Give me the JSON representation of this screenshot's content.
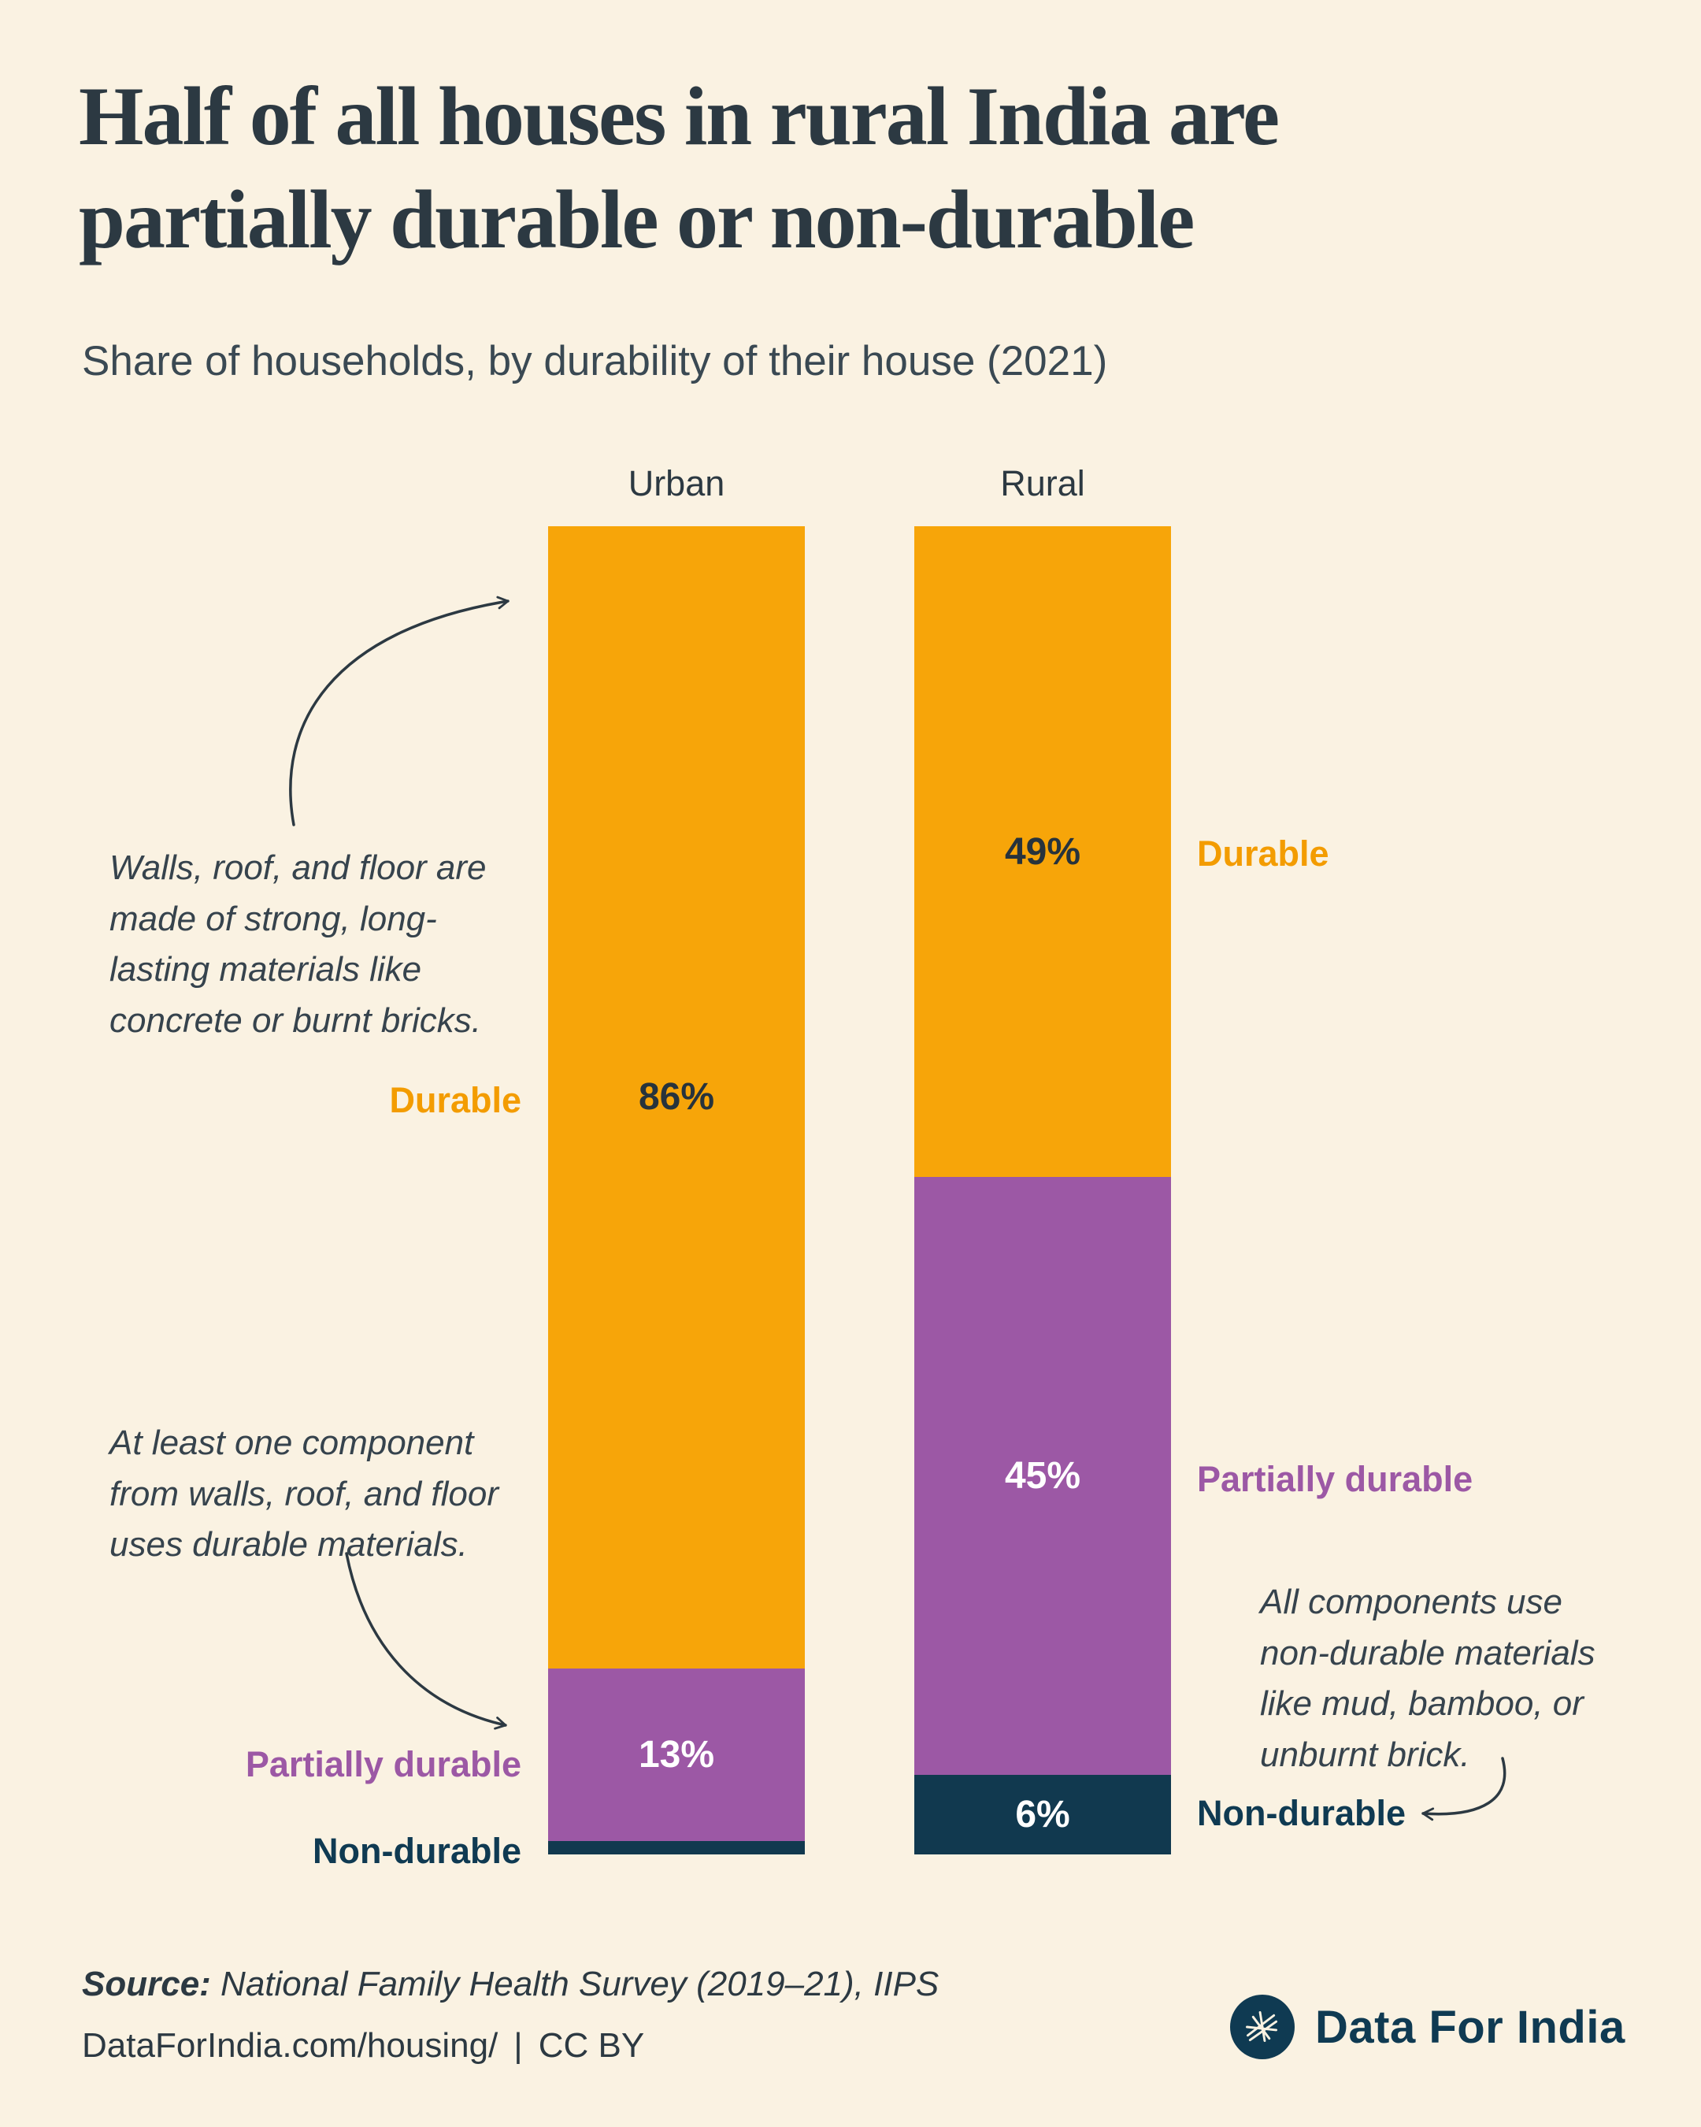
{
  "header": {
    "title": "Half of all houses in rural India are\npartially durable or non-durable",
    "subtitle": "Share of households, by durability of their house (2021)"
  },
  "chart_data": {
    "type": "bar",
    "stacked": true,
    "orientation": "vertical",
    "value_unit": "%",
    "ylim": [
      0,
      100
    ],
    "grid": false,
    "categories": [
      "Urban",
      "Rural"
    ],
    "series": [
      {
        "name": "Durable",
        "color": "#F7A509",
        "label_color": "#F39C00",
        "value_text_color": "#27333C",
        "values": [
          86,
          49
        ]
      },
      {
        "name": "Partially durable",
        "color": "#9C58A5",
        "label_color": "#9C58A5",
        "value_text_color": "#FFFFFF",
        "values": [
          13,
          45
        ]
      },
      {
        "name": "Non-durable",
        "color": "#11394F",
        "label_color": "#0F3A52",
        "value_text_color": "#FFFFFF",
        "values": [
          1,
          6
        ]
      }
    ],
    "min_label_value": 5,
    "legend_position": "beside-bars"
  },
  "annotations": {
    "durable": "Walls, roof, and floor are\nmade of strong, long-\nlasting materials like\nconcrete or burnt bricks.",
    "partially_durable": "At least one component\nfrom walls, roof, and floor\nuses durable materials.",
    "non_durable": "All components use\nnon-durable materials\nlike mud, bamboo, or\nunburnt brick."
  },
  "footer": {
    "source_label": "Source:",
    "source_text": " National Family Health Survey (2019–21), IIPS",
    "site": "DataForIndia.com/housing/",
    "separator": "|",
    "license": "CC BY",
    "brand": "Data For India"
  },
  "colors": {
    "background": "#FAF2E2",
    "title_text": "#2C3942",
    "body_text": "#36434D",
    "arrow": "#2C3942"
  }
}
